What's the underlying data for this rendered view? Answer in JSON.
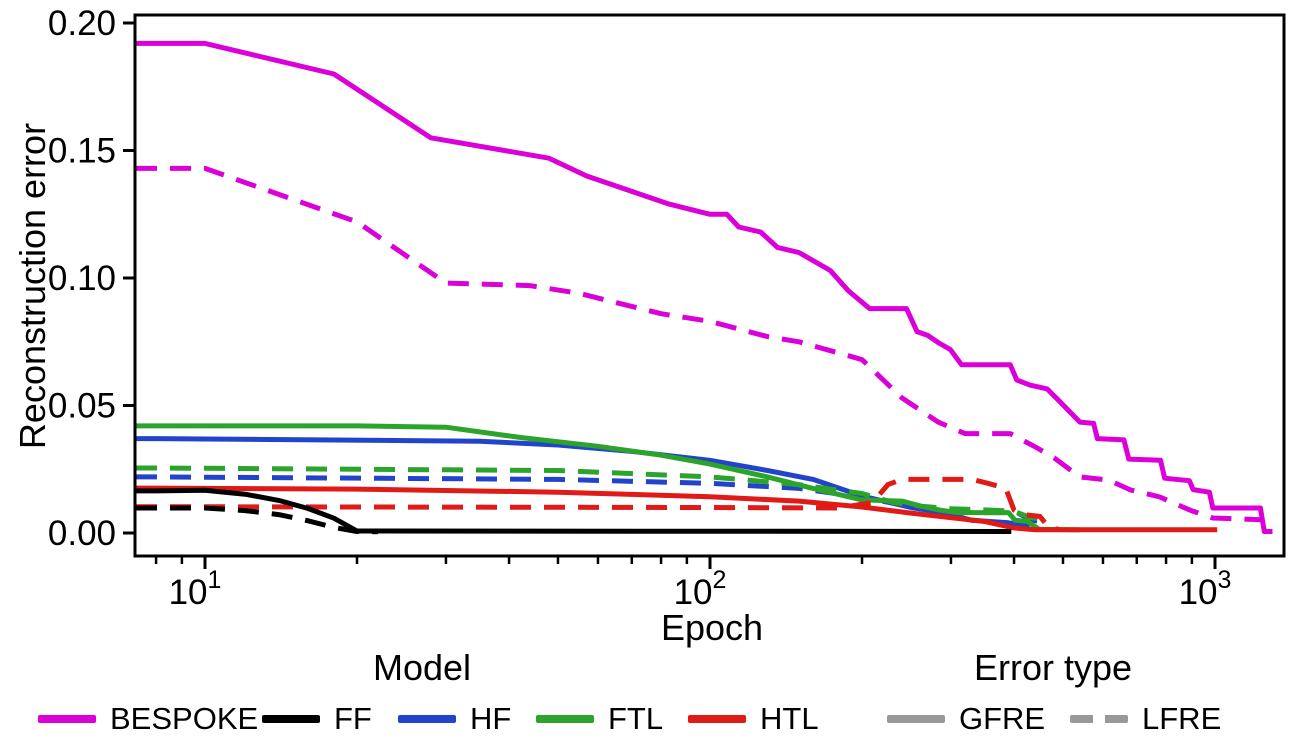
{
  "chart_data": {
    "type": "line",
    "title": "",
    "xlabel": "Epoch",
    "ylabel": "Reconstruction error",
    "x_scale": "log10",
    "x_range": [
      7.3,
      1368
    ],
    "ylim": [
      -0.009,
      0.204
    ],
    "grid": false,
    "y_ticks": [
      {
        "value": 0.0,
        "label": "0.00"
      },
      {
        "value": 0.05,
        "label": "0.05"
      },
      {
        "value": 0.1,
        "label": "0.10"
      },
      {
        "value": 0.15,
        "label": "0.15"
      },
      {
        "value": 0.2,
        "label": "0.20"
      }
    ],
    "x_major_ticks": [
      {
        "value": 10,
        "base": "10",
        "exp": "1"
      },
      {
        "value": 100,
        "base": "10",
        "exp": "2"
      },
      {
        "value": 1000,
        "base": "10",
        "exp": "3"
      }
    ],
    "x_minor_ticks": [
      8,
      9,
      20,
      30,
      40,
      50,
      60,
      70,
      80,
      90,
      200,
      300,
      400,
      500,
      600,
      700,
      800,
      900
    ],
    "series": [
      {
        "name": "HF-GFRE",
        "model": "HF",
        "error_type": "GFRE",
        "color": "#2244CC",
        "dash": "solid",
        "points": [
          [
            8,
            0.037
          ],
          [
            35,
            0.036
          ],
          [
            50,
            0.0345
          ],
          [
            70,
            0.032
          ],
          [
            100,
            0.0285
          ],
          [
            130,
            0.0245
          ],
          [
            160,
            0.021
          ],
          [
            200,
            0.0145
          ],
          [
            250,
            0.01
          ],
          [
            290,
            0.008
          ],
          [
            330,
            0.005
          ],
          [
            390,
            0.004
          ],
          [
            430,
            0.003
          ]
        ]
      },
      {
        "name": "HF-LFRE",
        "model": "HF",
        "error_type": "LFRE",
        "color": "#2244CC",
        "dash": "dashed",
        "points": [
          [
            8,
            0.022
          ],
          [
            50,
            0.021
          ],
          [
            100,
            0.0195
          ],
          [
            150,
            0.0175
          ],
          [
            200,
            0.014
          ],
          [
            240,
            0.011
          ],
          [
            280,
            0.009
          ],
          [
            330,
            0.008
          ],
          [
            405,
            0.008
          ],
          [
            435,
            0.005
          ],
          [
            455,
            0.0045
          ]
        ]
      },
      {
        "name": "FTL-GFRE",
        "model": "FTL",
        "error_type": "GFRE",
        "color": "#2CA42C",
        "dash": "solid",
        "points": [
          [
            8,
            0.042
          ],
          [
            20,
            0.042
          ],
          [
            30,
            0.0415
          ],
          [
            42,
            0.0375
          ],
          [
            60,
            0.034
          ],
          [
            80,
            0.0305
          ],
          [
            100,
            0.027
          ],
          [
            130,
            0.022
          ],
          [
            160,
            0.0175
          ],
          [
            200,
            0.013
          ],
          [
            240,
            0.0125
          ],
          [
            262,
            0.0105
          ],
          [
            285,
            0.009
          ],
          [
            310,
            0.008
          ],
          [
            390,
            0.008
          ],
          [
            402,
            0.005
          ],
          [
            425,
            0.0046
          ],
          [
            448,
            0.0015
          ],
          [
            540,
            0.0012
          ]
        ]
      },
      {
        "name": "FTL-LFRE",
        "model": "FTL",
        "error_type": "LFRE",
        "color": "#2CA42C",
        "dash": "dashed",
        "points": [
          [
            8,
            0.0255
          ],
          [
            50,
            0.0245
          ],
          [
            100,
            0.022
          ],
          [
            150,
            0.019
          ],
          [
            200,
            0.0155
          ],
          [
            230,
            0.012
          ],
          [
            262,
            0.0105
          ],
          [
            300,
            0.0095
          ],
          [
            360,
            0.009
          ],
          [
            400,
            0.0085
          ],
          [
            432,
            0.006
          ],
          [
            470,
            0.005
          ]
        ]
      },
      {
        "name": "HTL-GFRE",
        "model": "HTL",
        "error_type": "GFRE",
        "color": "#E01A16",
        "dash": "solid",
        "points": [
          [
            8,
            0.0176
          ],
          [
            20,
            0.0172
          ],
          [
            50,
            0.016
          ],
          [
            100,
            0.0142
          ],
          [
            150,
            0.0125
          ],
          [
            200,
            0.0102
          ],
          [
            250,
            0.0078
          ],
          [
            300,
            0.006
          ],
          [
            350,
            0.0045
          ],
          [
            400,
            0.002
          ],
          [
            440,
            0.0013
          ],
          [
            1010,
            0.0013
          ]
        ]
      },
      {
        "name": "HTL-LFRE",
        "model": "HTL",
        "error_type": "LFRE",
        "color": "#E01A16",
        "dash": "dashed",
        "points": [
          [
            8,
            0.0103
          ],
          [
            100,
            0.01
          ],
          [
            180,
            0.0098
          ],
          [
            210,
            0.012
          ],
          [
            225,
            0.019
          ],
          [
            240,
            0.021
          ],
          [
            330,
            0.021
          ],
          [
            355,
            0.0195
          ],
          [
            385,
            0.0176
          ],
          [
            400,
            0.009
          ],
          [
            412,
            0.0073
          ],
          [
            450,
            0.0065
          ],
          [
            465,
            0.003
          ],
          [
            488,
            0.0015
          ]
        ]
      },
      {
        "name": "FF-GFRE",
        "model": "FF",
        "error_type": "GFRE",
        "color": "#000000",
        "dash": "solid",
        "points": [
          [
            8,
            0.0165
          ],
          [
            10,
            0.0168
          ],
          [
            12,
            0.0152
          ],
          [
            14,
            0.0128
          ],
          [
            16,
            0.0096
          ],
          [
            18,
            0.0058
          ],
          [
            20,
            0.0008
          ],
          [
            395,
            0.0006
          ]
        ]
      },
      {
        "name": "FF-LFRE",
        "model": "FF",
        "error_type": "LFRE",
        "color": "#000000",
        "dash": "dashed",
        "points": [
          [
            8,
            0.0098
          ],
          [
            10,
            0.0098
          ],
          [
            12,
            0.0088
          ],
          [
            14,
            0.0072
          ],
          [
            16,
            0.0048
          ],
          [
            18,
            0.0022
          ],
          [
            20,
            0.0006
          ],
          [
            22,
            0.0005
          ]
        ]
      },
      {
        "name": "BESPOKE-LFRE",
        "model": "BESPOKE",
        "error_type": "LFRE",
        "color": "#DC00D8",
        "dash": "dashed",
        "points": [
          [
            8,
            0.143
          ],
          [
            10,
            0.143
          ],
          [
            20,
            0.122
          ],
          [
            30,
            0.098
          ],
          [
            44,
            0.097
          ],
          [
            55,
            0.094
          ],
          [
            80,
            0.086
          ],
          [
            100,
            0.083
          ],
          [
            130,
            0.077
          ],
          [
            150,
            0.075
          ],
          [
            200,
            0.068
          ],
          [
            240,
            0.053
          ],
          [
            283,
            0.0435
          ],
          [
            320,
            0.039
          ],
          [
            393,
            0.039
          ],
          [
            445,
            0.0333
          ],
          [
            480,
            0.0295
          ],
          [
            540,
            0.022
          ],
          [
            615,
            0.0208
          ],
          [
            680,
            0.0169
          ],
          [
            778,
            0.0141
          ],
          [
            892,
            0.009
          ],
          [
            990,
            0.0059
          ],
          [
            1235,
            0.0052
          ]
        ]
      },
      {
        "name": "BESPOKE-GFRE",
        "model": "BESPOKE",
        "error_type": "GFRE",
        "color": "#DC00D8",
        "dash": "solid",
        "points": [
          [
            8,
            0.192
          ],
          [
            10,
            0.192
          ],
          [
            18,
            0.18
          ],
          [
            28,
            0.155
          ],
          [
            48,
            0.147
          ],
          [
            57,
            0.14
          ],
          [
            83,
            0.129
          ],
          [
            100,
            0.125
          ],
          [
            108,
            0.125
          ],
          [
            114,
            0.12
          ],
          [
            126,
            0.118
          ],
          [
            136,
            0.112
          ],
          [
            150,
            0.11
          ],
          [
            173,
            0.103
          ],
          [
            188,
            0.095
          ],
          [
            207,
            0.088
          ],
          [
            245,
            0.088
          ],
          [
            257,
            0.079
          ],
          [
            270,
            0.0775
          ],
          [
            284,
            0.0745
          ],
          [
            299,
            0.072
          ],
          [
            315,
            0.066
          ],
          [
            393,
            0.066
          ],
          [
            405,
            0.06
          ],
          [
            430,
            0.058
          ],
          [
            465,
            0.0565
          ],
          [
            493,
            0.0515
          ],
          [
            540,
            0.0435
          ],
          [
            575,
            0.043
          ],
          [
            585,
            0.037
          ],
          [
            660,
            0.0365
          ],
          [
            675,
            0.029
          ],
          [
            780,
            0.0285
          ],
          [
            795,
            0.0215
          ],
          [
            890,
            0.0205
          ],
          [
            905,
            0.017
          ],
          [
            975,
            0.016
          ],
          [
            990,
            0.0098
          ],
          [
            1230,
            0.0098
          ],
          [
            1252,
            0.0006
          ],
          [
            1300,
            0.0006
          ]
        ]
      }
    ]
  },
  "legend": {
    "model": {
      "title": "Model",
      "entries": [
        {
          "label": "BESPOKE",
          "color": "#DC00D8",
          "dash": "solid"
        },
        {
          "label": "FF",
          "color": "#000000",
          "dash": "solid"
        },
        {
          "label": "HF",
          "color": "#2244CC",
          "dash": "solid"
        },
        {
          "label": "FTL",
          "color": "#2CA42C",
          "dash": "solid"
        },
        {
          "label": "HTL",
          "color": "#E01A16",
          "dash": "solid"
        }
      ]
    },
    "error_type": {
      "title": "Error type",
      "entries": [
        {
          "label": "GFRE",
          "color": "#999999",
          "dash": "solid"
        },
        {
          "label": "LFRE",
          "color": "#999999",
          "dash": "dashed"
        }
      ]
    }
  },
  "colors": {
    "axis": "#000000",
    "background": "#ffffff",
    "legend_gray": "#999999"
  }
}
